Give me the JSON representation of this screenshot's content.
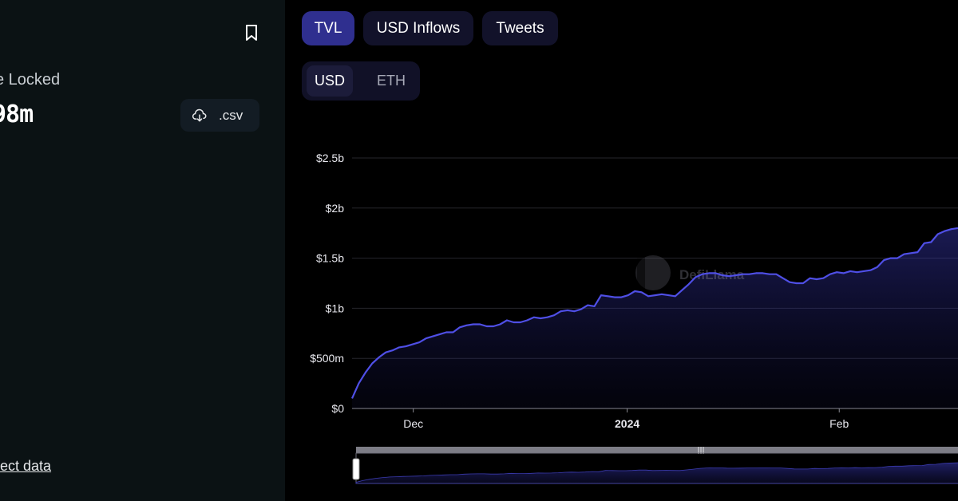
{
  "sidebar": {
    "tvl_label": "e Locked",
    "tvl_value": "98m",
    "csv_label": ".csv",
    "correct_data_link": "rrect data"
  },
  "tabs": [
    {
      "label": "TVL",
      "active": true
    },
    {
      "label": "USD Inflows",
      "active": false
    },
    {
      "label": "Tweets",
      "active": false
    }
  ],
  "denomination": [
    {
      "label": "USD",
      "active": true
    },
    {
      "label": "ETH",
      "active": false
    }
  ],
  "watermark": "DefiLlama",
  "colors": {
    "line": "#4f4fe6",
    "active_tab": "#2f2f8f",
    "tab": "#12122a",
    "sidebar_bg": "#0b1214"
  },
  "chart_data": {
    "type": "area",
    "title": "",
    "xlabel": "",
    "ylabel": "",
    "yticks": [
      "$0",
      "$500m",
      "$1b",
      "$1.5b",
      "$2b",
      "$2.5b"
    ],
    "ylim": [
      0,
      2.5
    ],
    "y_unit": "b (billions USD)",
    "xticks": [
      {
        "label": "Dec",
        "bold": false
      },
      {
        "label": "2024",
        "bold": true
      },
      {
        "label": "Feb",
        "bold": false
      }
    ],
    "grid": true,
    "series": [
      {
        "values": [
          0.1,
          0.25,
          0.36,
          0.45,
          0.51,
          0.56,
          0.58,
          0.61,
          0.62,
          0.64,
          0.66,
          0.7,
          0.72,
          0.74,
          0.76,
          0.76,
          0.81,
          0.83,
          0.84,
          0.84,
          0.82,
          0.82,
          0.84,
          0.88,
          0.86,
          0.86,
          0.88,
          0.91,
          0.9,
          0.91,
          0.93,
          0.97,
          0.98,
          0.97,
          0.99,
          1.03,
          1.02,
          1.13,
          1.12,
          1.11,
          1.11,
          1.13,
          1.17,
          1.16,
          1.12,
          1.13,
          1.14,
          1.13,
          1.12,
          1.18,
          1.24,
          1.31,
          1.34,
          1.35,
          1.35,
          1.33,
          1.32,
          1.33,
          1.34,
          1.34,
          1.35,
          1.35,
          1.34,
          1.34,
          1.3,
          1.26,
          1.25,
          1.25,
          1.3,
          1.29,
          1.3,
          1.34,
          1.36,
          1.35,
          1.37,
          1.36,
          1.37,
          1.38,
          1.41,
          1.48,
          1.5,
          1.5,
          1.54,
          1.55,
          1.56,
          1.65,
          1.66,
          1.74,
          1.77,
          1.79,
          1.8
        ]
      }
    ]
  }
}
